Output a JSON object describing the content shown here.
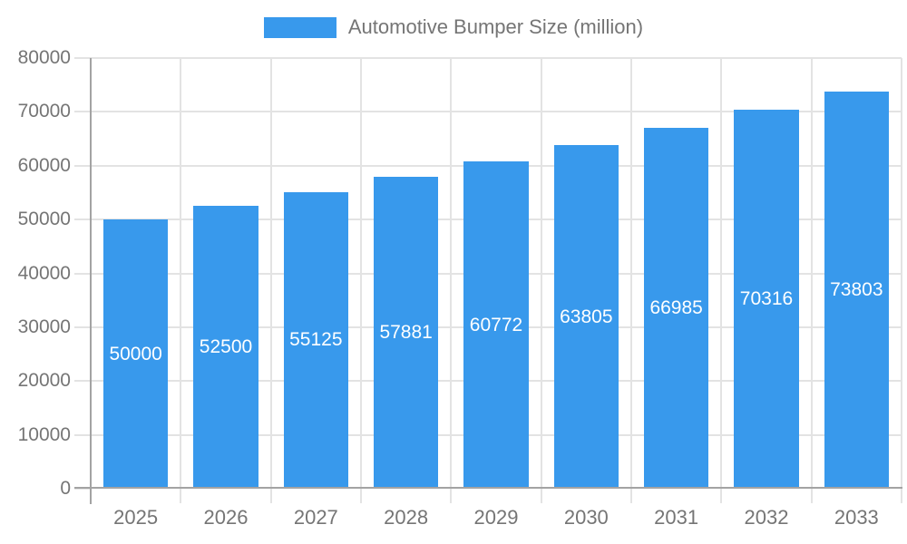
{
  "chart_data": {
    "type": "bar",
    "title": "",
    "legend": {
      "label": "Automotive Bumper Size (million)",
      "position": "top-center"
    },
    "categories": [
      "2025",
      "2026",
      "2027",
      "2028",
      "2029",
      "2030",
      "2031",
      "2032",
      "2033"
    ],
    "values": [
      50000,
      52500,
      55125,
      57881,
      60772,
      63805,
      66985,
      70316,
      73803
    ],
    "xlabel": "",
    "ylabel": "",
    "ylim": [
      0,
      80000
    ],
    "yticks": [
      0,
      10000,
      20000,
      30000,
      40000,
      50000,
      60000,
      70000,
      80000
    ],
    "grid": true,
    "value_labels_inside_bars": true,
    "colors": {
      "bar": "#3899EC",
      "grid": "#E3E3E3",
      "axis": "#A3A3A3",
      "axis_label": "#757575",
      "value_label": "#FFFFFF",
      "background": "#FFFFFF"
    }
  }
}
